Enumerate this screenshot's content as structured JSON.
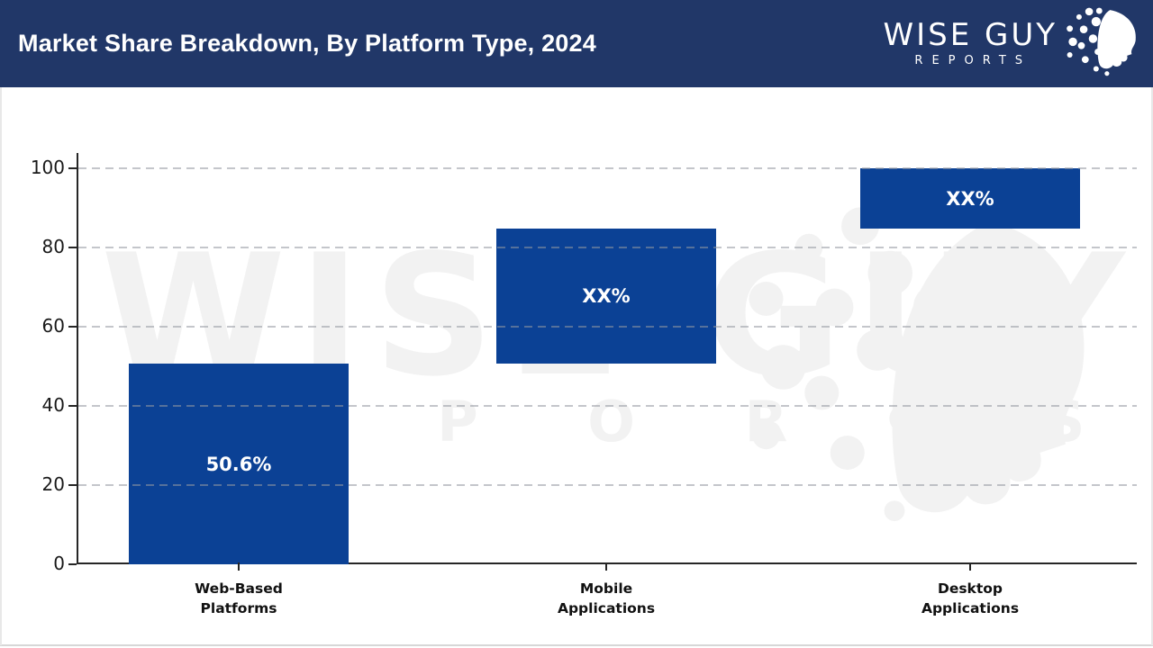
{
  "header": {
    "title": "Market Share Breakdown, By Platform Type, 2024",
    "bg_color": "#213768",
    "logo": {
      "line1": "WISE GUY",
      "line2": "REPORTS"
    }
  },
  "watermark": {
    "line1": "WISE GUY",
    "line2": "R E P O R T S"
  },
  "chart_data": {
    "type": "bar",
    "subtype": "floating-stacked-segments",
    "title": "Market Share Breakdown, By Platform Type, 2024",
    "categories": [
      "Web-Based\nPlatforms",
      "Mobile\nApplications",
      "Desktop\nApplications"
    ],
    "segments": [
      {
        "category": "Web-Based Platforms",
        "start": 0,
        "end": 50.6,
        "label": "50.6%"
      },
      {
        "category": "Mobile Applications",
        "start": 50.6,
        "end": 84.7,
        "label": "XX%"
      },
      {
        "category": "Desktop Applications",
        "start": 84.7,
        "end": 100,
        "label": "XX%"
      }
    ],
    "ylim": [
      0,
      104
    ],
    "yticks": [
      0,
      20,
      40,
      60,
      80,
      100
    ],
    "grid": "horizontal-dashed",
    "legend": "none",
    "bar_color": "#0b4195",
    "bar_label_color": "#ffffff",
    "axis_color": "#262626"
  }
}
